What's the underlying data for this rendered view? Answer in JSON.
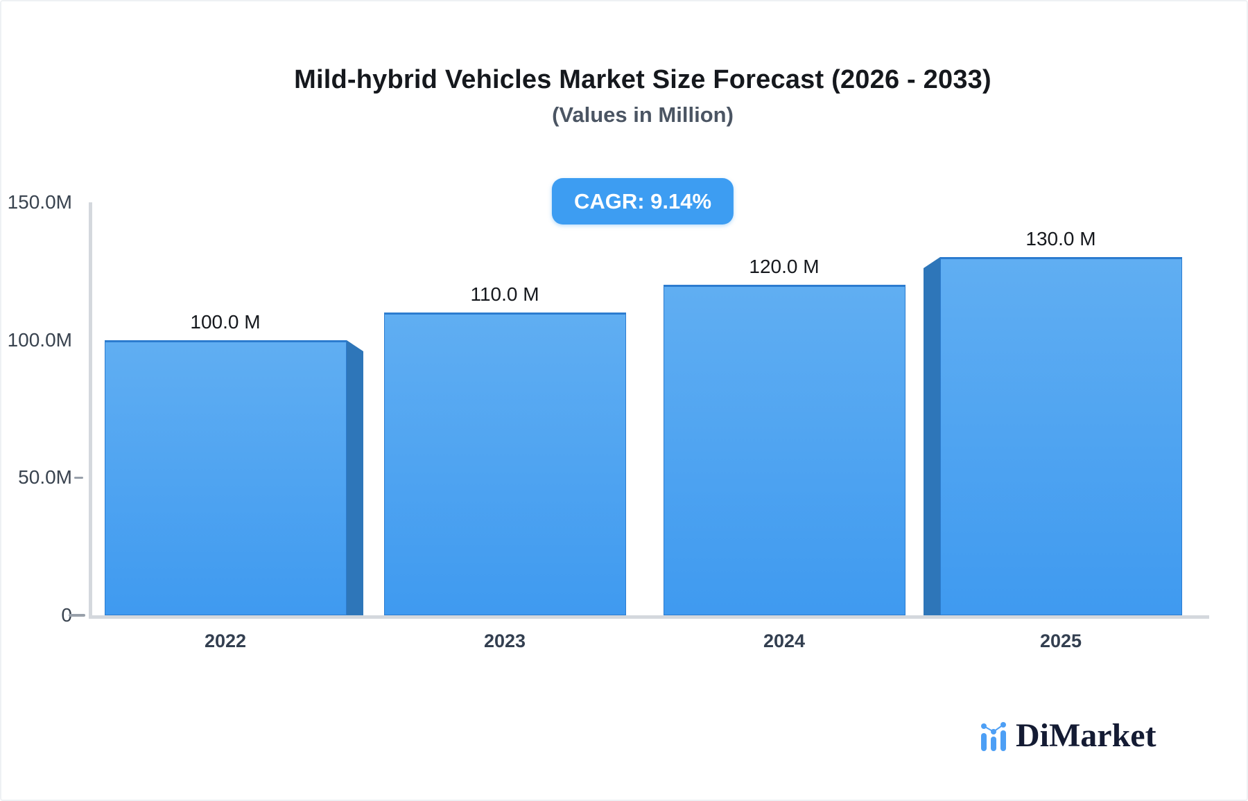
{
  "header": {
    "title": "Mild-hybrid Vehicles Market Size Forecast (2026 - 2033)",
    "subtitle": "(Values in Million)",
    "cagr_badge": "CAGR: 9.14%"
  },
  "chart_data": {
    "type": "bar",
    "title": "Mild-hybrid Vehicles Market Size Forecast (2026 - 2033)",
    "subtitle": "(Values in Million)",
    "unit": "Million",
    "cagr": "9.14%",
    "categories": [
      "2022",
      "2023",
      "2024",
      "2025"
    ],
    "values": [
      100.0,
      110.0,
      120.0,
      130.0
    ],
    "value_labels": [
      "100.0 M",
      "110.0 M",
      "120.0 M",
      "130.0 M"
    ],
    "ylim": [
      0,
      150
    ],
    "y_ticks": [
      {
        "label": "150.0M",
        "value": 150,
        "tick_mark": "none"
      },
      {
        "label": "100.0M",
        "value": 100,
        "tick_mark": "none"
      },
      {
        "label": "50.0M",
        "value": 50,
        "tick_mark": "short"
      },
      {
        "label": "0",
        "value": 0,
        "tick_mark": "long"
      }
    ],
    "grid": false,
    "legend": false
  },
  "logo": {
    "text": "DiMarket",
    "icon": "mini-bar-chart-icon"
  },
  "colors": {
    "badge_bg": "#3d9df2",
    "bar_top": "#60aef2",
    "bar_bottom": "#3f9af0",
    "bar_edge": "#2c7ccf",
    "bar_side": "#2e76b9",
    "axis": "#d4d8dd",
    "title_text": "#15181d",
    "subtitle_text": "#4b5563",
    "axis_label": "#39434f",
    "x_label": "#333f50",
    "logo_navy": "#141b33",
    "logo_blue": "#4d9ff5"
  }
}
